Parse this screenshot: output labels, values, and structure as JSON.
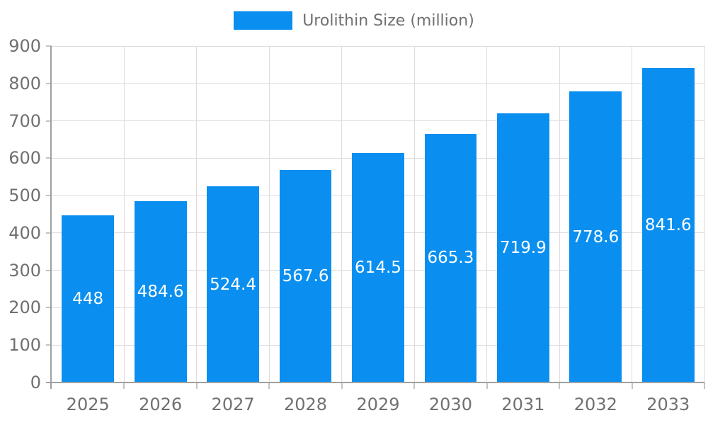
{
  "legend": {
    "label": "Urolithin Size (million)"
  },
  "colors": {
    "bar": "#0a8ff0",
    "axis_text": "#707070",
    "legend_text": "#707070",
    "value_label_text": "#ffffff",
    "grid_line": "#dddddd",
    "tick_line": "#c4c4c4",
    "axis_line": "#a0a0a0",
    "background": "#ffffff"
  },
  "chart_data": {
    "type": "bar",
    "title": "Urolithin Size (million)",
    "series_name": "Urolithin Size (million)",
    "categories": [
      "2025",
      "2026",
      "2027",
      "2028",
      "2029",
      "2030",
      "2031",
      "2032",
      "2033"
    ],
    "values": [
      448,
      484.6,
      524.4,
      567.6,
      614.5,
      665.3,
      719.9,
      778.6,
      841.6
    ],
    "value_labels": [
      "448",
      "484.6",
      "524.4",
      "567.6",
      "614.5",
      "665.3",
      "719.9",
      "778.6",
      "841.6"
    ],
    "xlabel": "",
    "ylabel": "",
    "ylim": [
      0,
      900
    ],
    "yticks": [
      0,
      100,
      200,
      300,
      400,
      500,
      600,
      700,
      800,
      900
    ],
    "grid": true,
    "legend_position": "top-center",
    "bar_label_position": "inside-center"
  }
}
